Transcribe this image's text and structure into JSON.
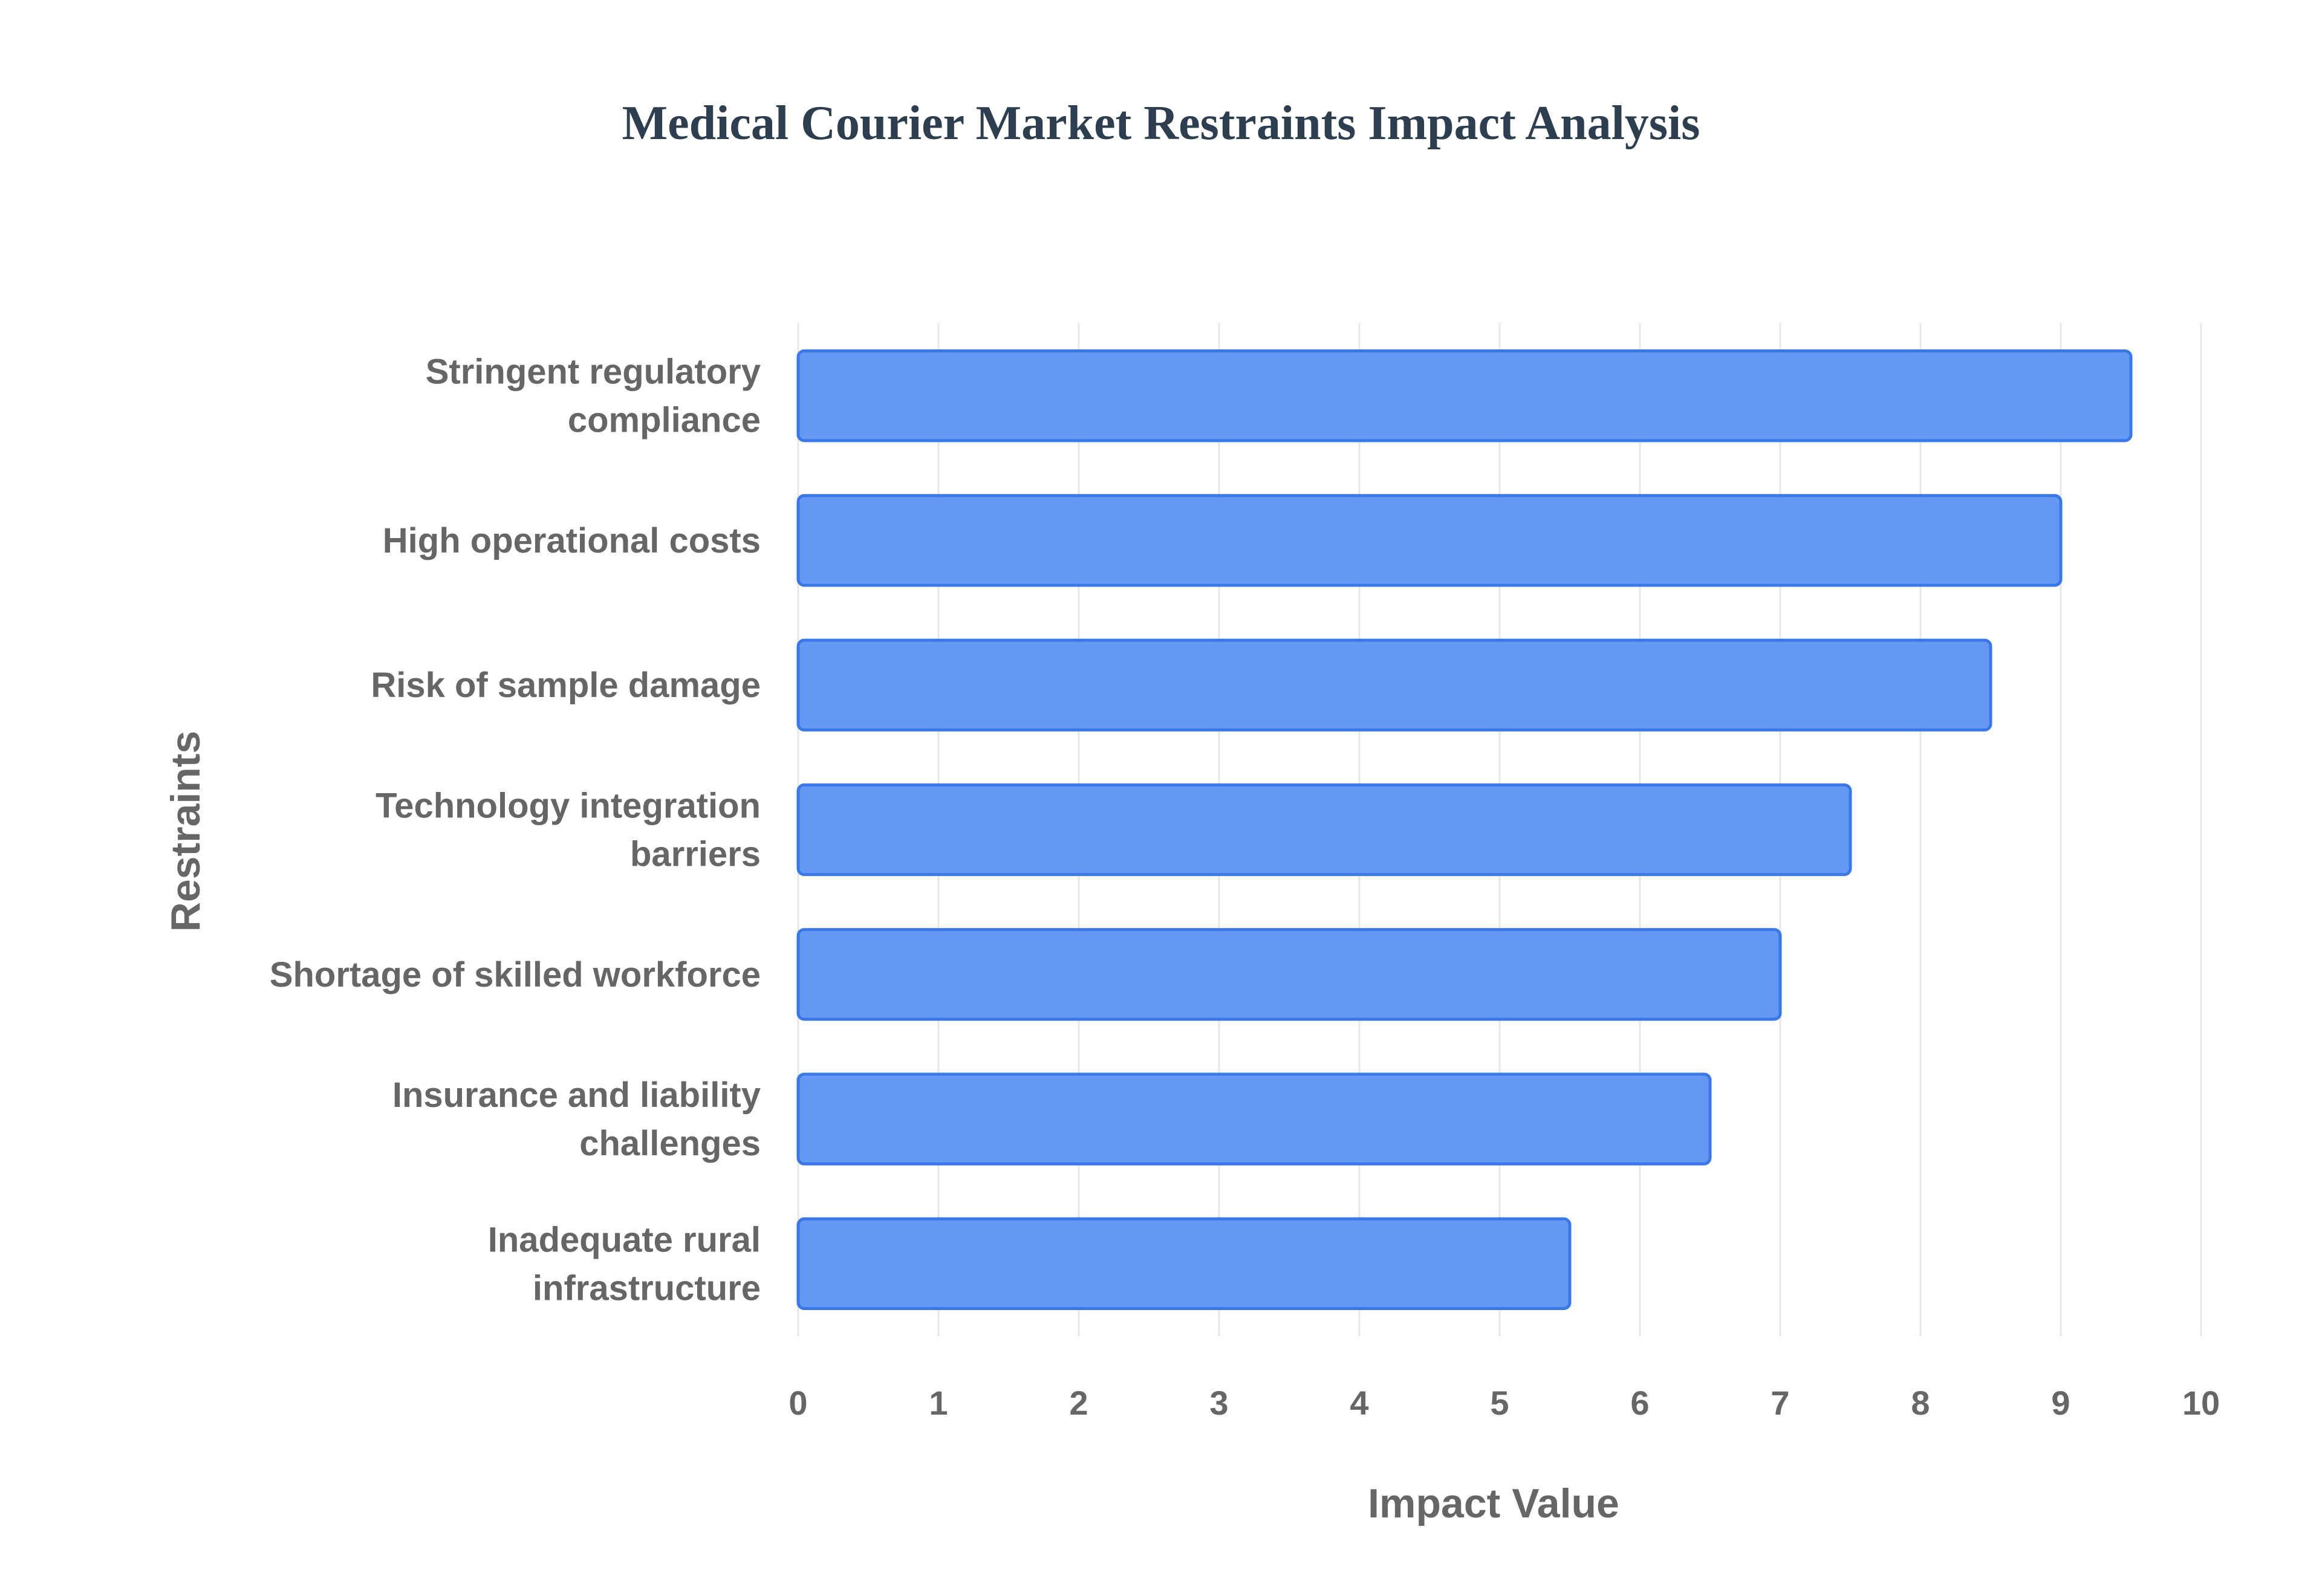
{
  "chart_data": {
    "type": "bar",
    "orientation": "horizontal",
    "title": "Medical Courier Market Restraints Impact Analysis",
    "xlabel": "Impact Value",
    "ylabel": "Restraints",
    "categories": [
      [
        "Stringent regulatory",
        "compliance"
      ],
      [
        "High operational costs"
      ],
      [
        "Risk of sample damage"
      ],
      [
        "Technology integration",
        "barriers"
      ],
      [
        "Shortage of skilled workforce"
      ],
      [
        "Insurance and liability",
        "challenges"
      ],
      [
        "Inadequate rural",
        "infrastructure"
      ]
    ],
    "values": [
      9.5,
      9.0,
      8.5,
      7.5,
      7.0,
      6.5,
      5.5
    ],
    "xlim": [
      0,
      10
    ],
    "xticks": [
      "0",
      "1",
      "2",
      "3",
      "4",
      "5",
      "6",
      "7",
      "8",
      "9",
      "10"
    ],
    "grid": true,
    "legend": "none",
    "bar_color": "#6599f4",
    "bar_edge_color": "#3a78ea"
  }
}
